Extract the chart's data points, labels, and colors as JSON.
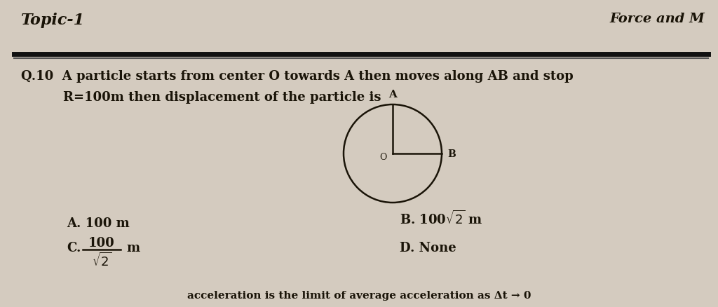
{
  "background_color": "#d8d0c0",
  "title_left": "Topic-1",
  "title_right": "Force and M",
  "question_text_line1": "Q.10  A particle starts from center O towards A then moves along AB and stop",
  "question_text_line2": "R=100m then displacement of the particle is",
  "option_A": "A. 100 m",
  "option_B_prefix": "B. 100",
  "option_B_suffix": "2 m",
  "option_C_num": "100",
  "option_C_den": "2",
  "option_C_unit": "m",
  "option_D": "D. None",
  "bottom_text": "acceleration is the limit of average acceleration as Δt → 0",
  "font_color": "#1a1408",
  "line_color": "#1a1408"
}
